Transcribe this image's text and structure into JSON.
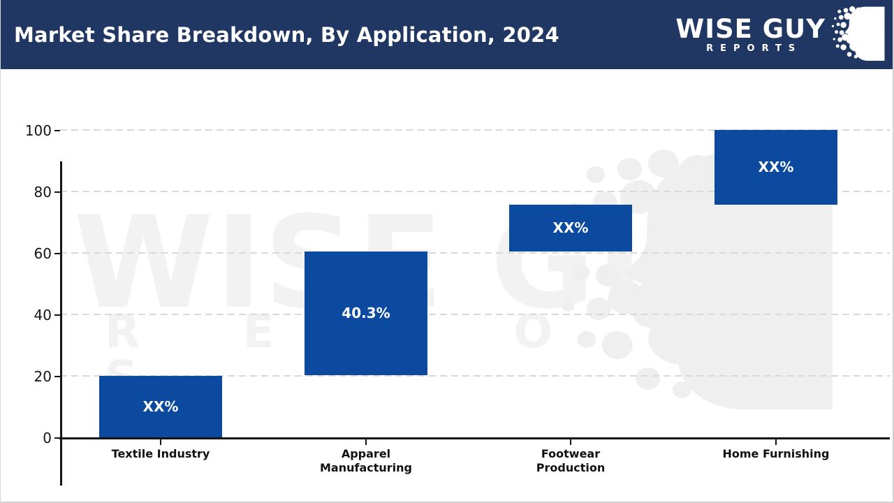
{
  "header": {
    "title": "Market Share Breakdown, By Application, 2024"
  },
  "logo": {
    "line1": "WISE GUY",
    "line2": "REPORTS"
  },
  "watermark": {
    "line1": "WISE GUY",
    "line2": "R E P O R T S"
  },
  "colors": {
    "header_bg": "#213763",
    "bar": "#0B4A9F",
    "grid": "#D9D9D9",
    "axis": "#151515",
    "watermark": "#F2F2F2"
  },
  "chart_data": {
    "type": "bar",
    "subtype": "waterfall-floating-bars",
    "title": "Market Share Breakdown, By Application, 2024",
    "categories": [
      "Textile Industry",
      "Apparel\nManufacturing",
      "Footwear\nProduction",
      "Home Furnishing"
    ],
    "segments": [
      {
        "category": "Textile Industry",
        "start": 0,
        "end": 20,
        "label": "XX%"
      },
      {
        "category": "Apparel Manufacturing",
        "start": 20.2,
        "end": 60.5,
        "label": "40.3%"
      },
      {
        "category": "Footwear Production",
        "start": 60.5,
        "end": 75.7,
        "label": "XX%"
      },
      {
        "category": "Home Furnishing",
        "start": 75.7,
        "end": 100,
        "label": "XX%"
      }
    ],
    "xlabel": "",
    "ylabel": "",
    "ylim": [
      0,
      100
    ],
    "yticks": [
      0,
      20,
      40,
      60,
      80,
      100
    ],
    "grid": "horizontal-dashed",
    "legend": "none"
  }
}
